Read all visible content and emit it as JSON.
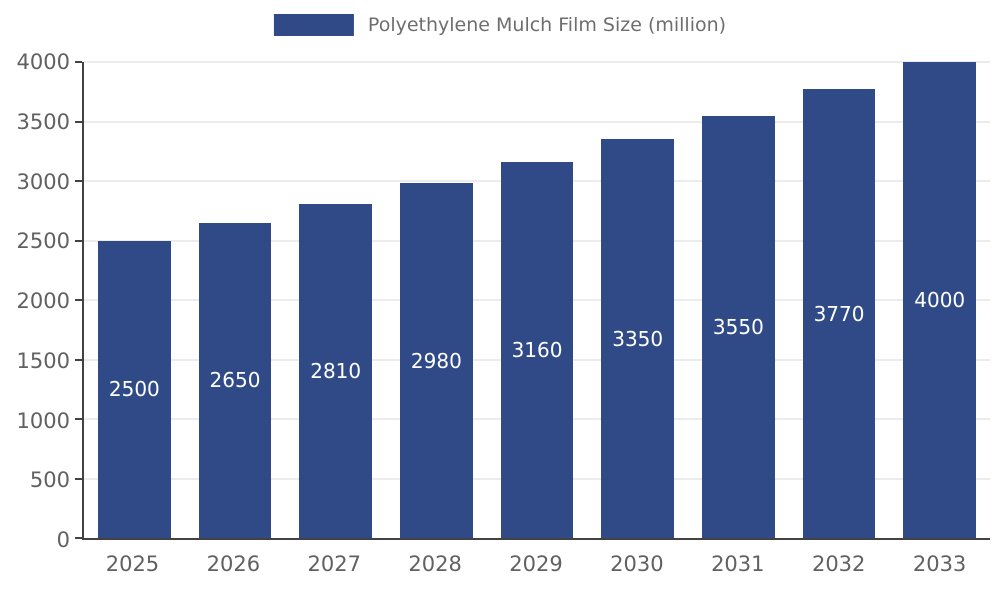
{
  "legend": {
    "label": "Polyethylene Mulch Film Size (million)"
  },
  "chart_data": {
    "type": "bar",
    "title": "Polyethylene Mulch Film Size (million)",
    "categories": [
      "2025",
      "2026",
      "2027",
      "2028",
      "2029",
      "2030",
      "2031",
      "2032",
      "2033"
    ],
    "values": [
      2500,
      2650,
      2810,
      2980,
      3160,
      3350,
      3550,
      3770,
      4000
    ],
    "xlabel": "",
    "ylabel": "",
    "ylim": [
      0,
      4000
    ],
    "yticks": [
      0,
      500,
      1000,
      1500,
      2000,
      2500,
      3000,
      3500,
      4000
    ],
    "bar_color": "#2F4A87",
    "value_label_color": "#ffffff",
    "grid": true,
    "legend_position": "top"
  }
}
